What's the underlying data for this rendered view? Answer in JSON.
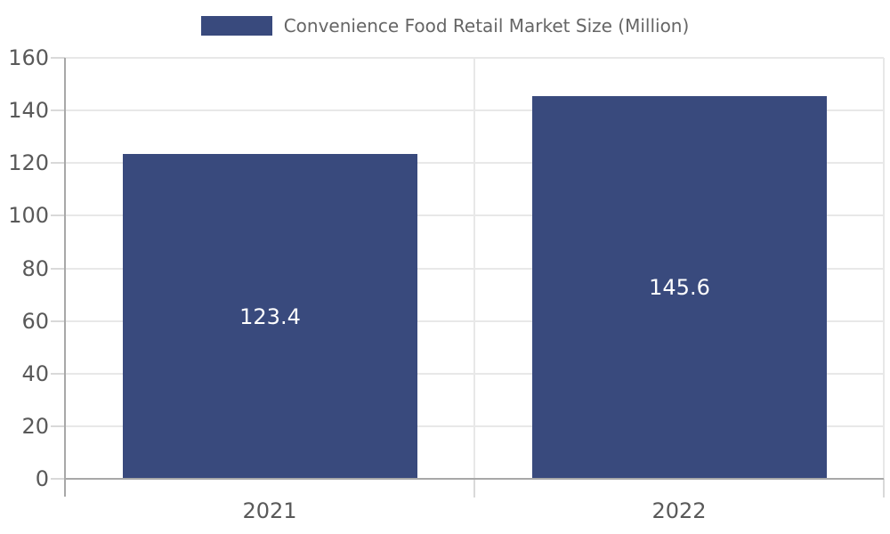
{
  "chart_data": {
    "type": "bar",
    "title": "",
    "series_name": "Convenience Food Retail Market Size (Million)",
    "categories": [
      "2021",
      "2022"
    ],
    "values": [
      123.4,
      145.6
    ],
    "value_labels": [
      "123.4",
      "145.6"
    ],
    "ylim": [
      0,
      160
    ],
    "ytick_step": 20,
    "ytick_labels": [
      "0",
      "20",
      "40",
      "60",
      "80",
      "100",
      "120",
      "140",
      "160"
    ],
    "grid": true,
    "legend_position": "top-center",
    "colors": {
      "bar": "#394A7D",
      "grid": "#E8E8E8",
      "axis": "#A8A8A8",
      "tick": "#D9D9D9",
      "axis_text": "#595959",
      "legend_text": "#666666",
      "value_label": "#FFFFFF",
      "background": "#FFFFFF"
    }
  }
}
